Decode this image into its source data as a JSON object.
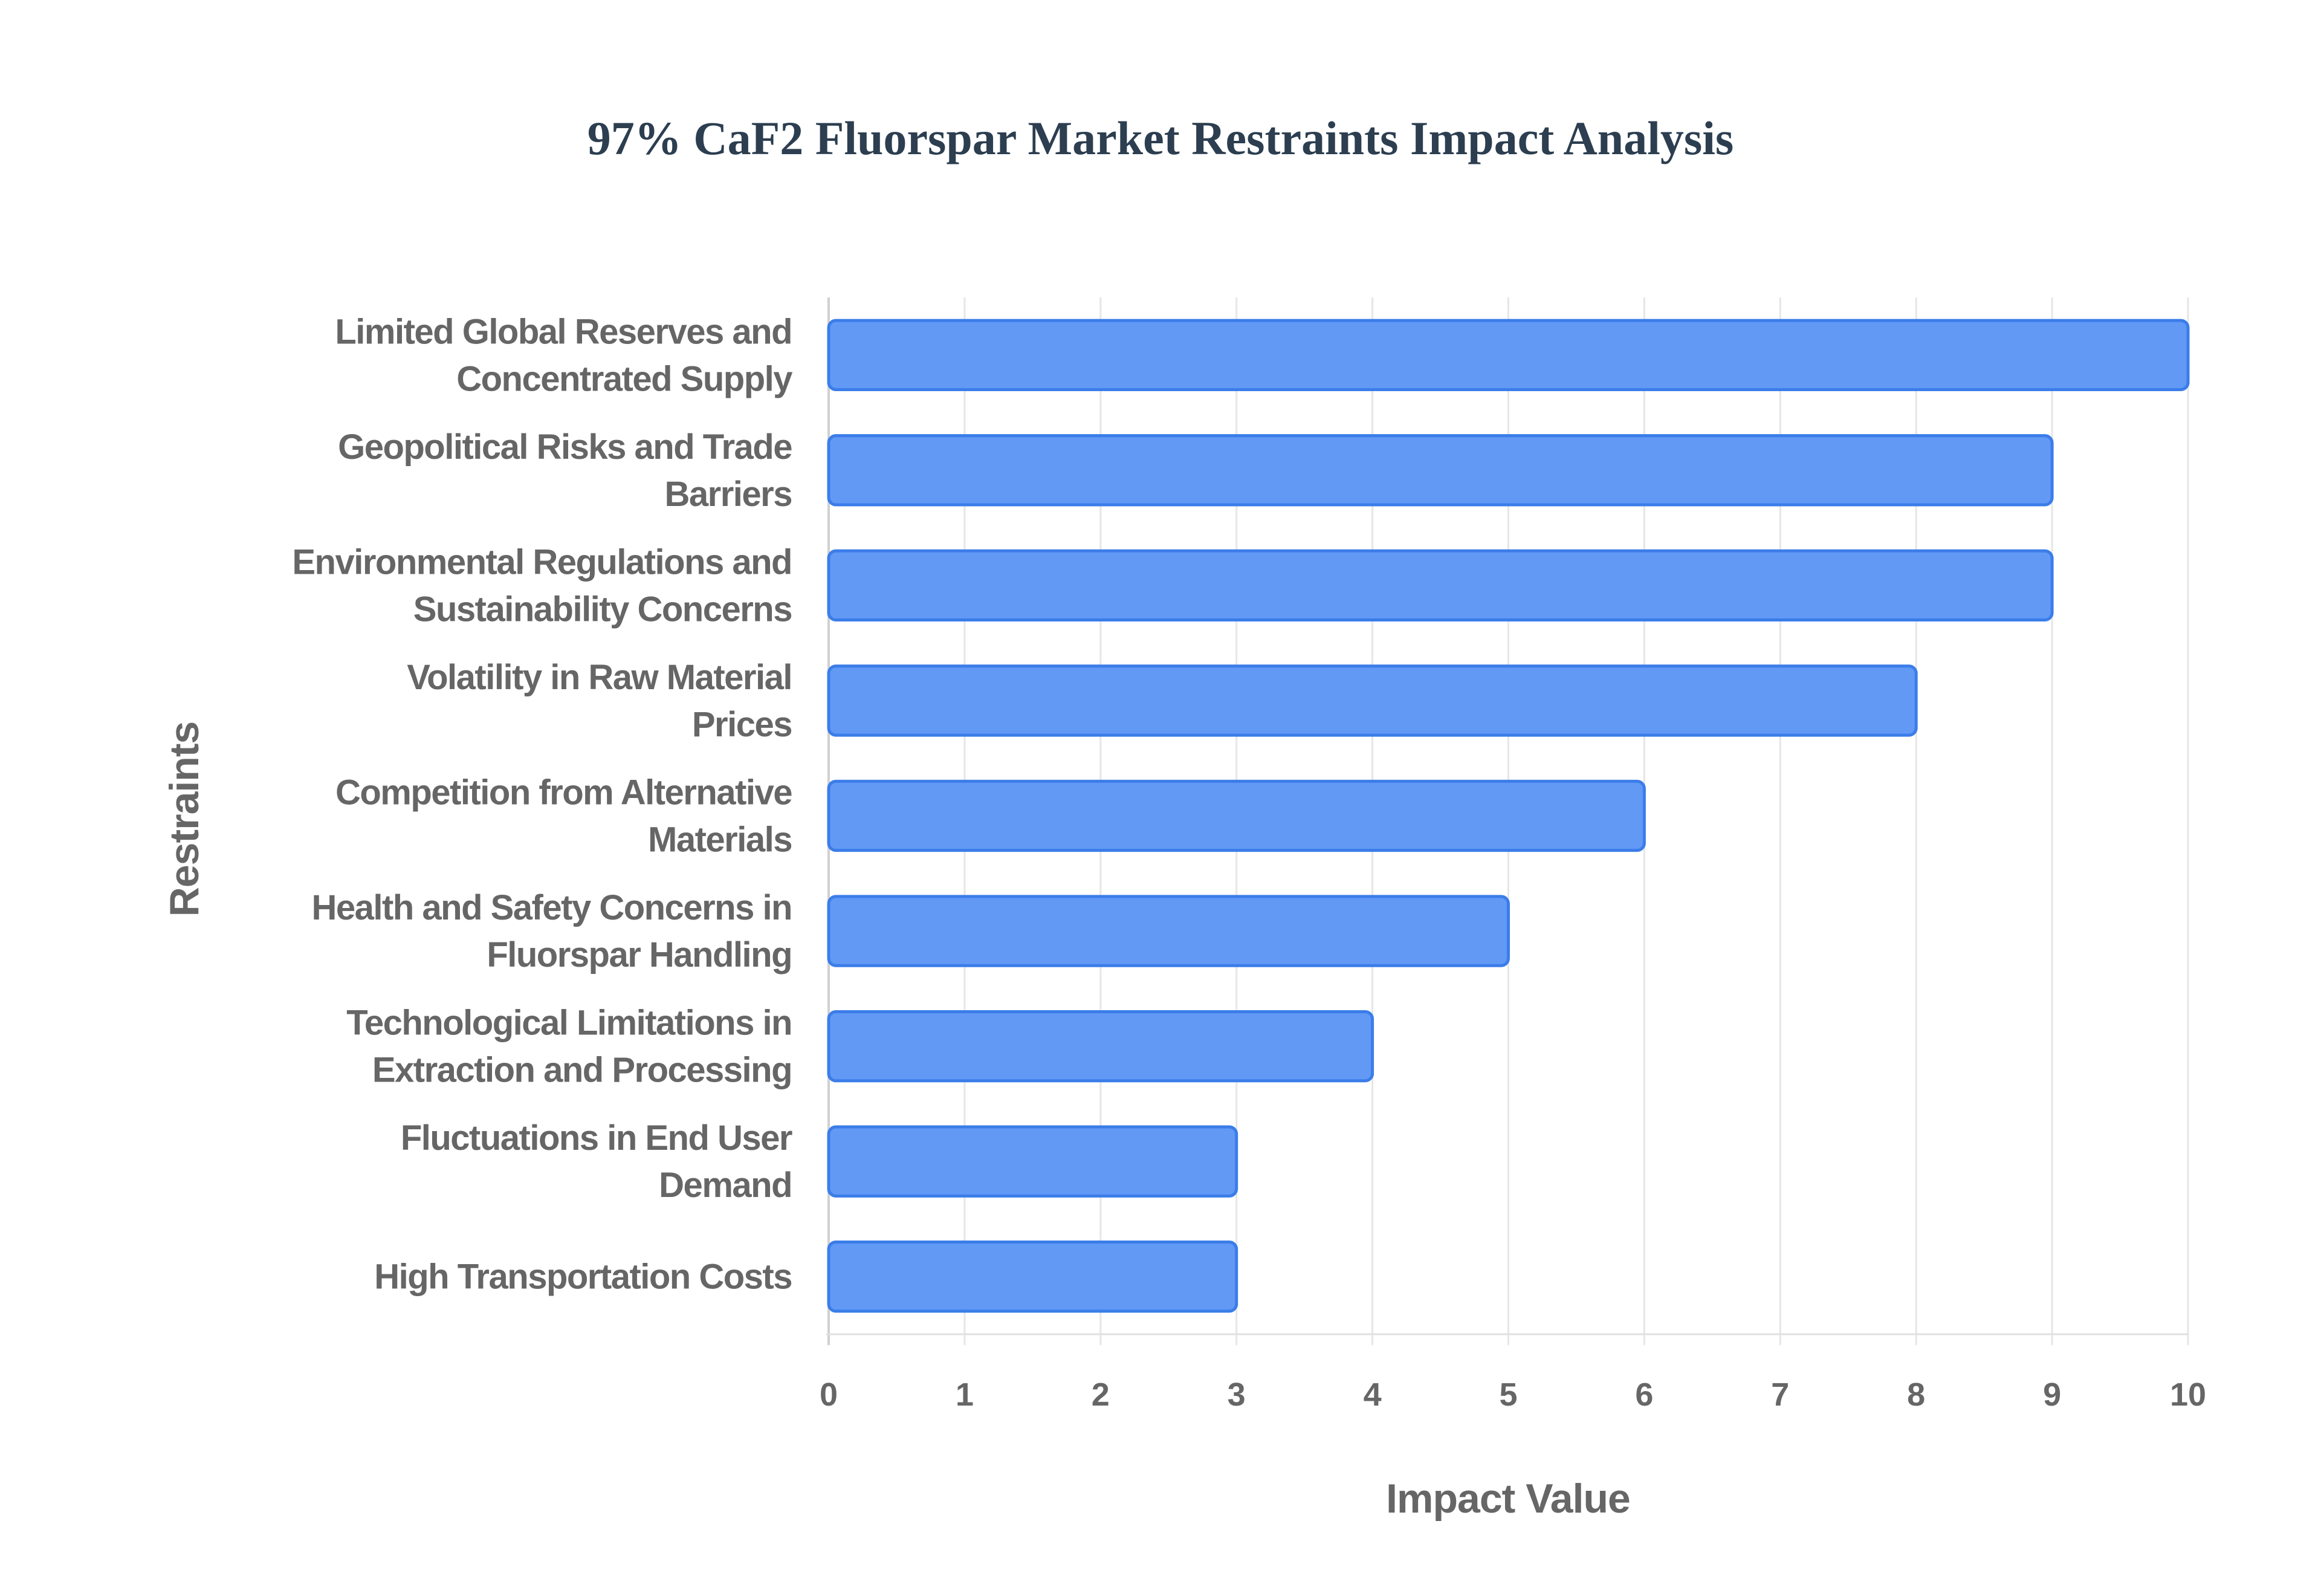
{
  "chart_data": {
    "type": "bar",
    "orientation": "horizontal",
    "title": "97% CaF2 Fluorspar Market Restraints Impact Analysis",
    "xlabel": "Impact Value",
    "ylabel": "Restraints",
    "xlim": [
      0,
      10
    ],
    "xticks": [
      "0",
      "1",
      "2",
      "3",
      "4",
      "5",
      "6",
      "7",
      "8",
      "9",
      "10"
    ],
    "grid": true,
    "categories": [
      [
        "Limited Global Reserves and",
        "Concentrated Supply"
      ],
      [
        "Geopolitical Risks and Trade",
        "Barriers"
      ],
      [
        "Environmental Regulations and",
        "Sustainability Concerns"
      ],
      [
        "Volatility in Raw Material",
        "Prices"
      ],
      [
        "Competition from Alternative",
        "Materials"
      ],
      [
        "Health and Safety Concerns in",
        "Fluorspar Handling"
      ],
      [
        "Technological Limitations in",
        "Extraction and Processing"
      ],
      [
        "Fluctuations in End User",
        "Demand"
      ],
      [
        "High Transportation Costs"
      ]
    ],
    "values": [
      10,
      9,
      9,
      8,
      6,
      5,
      4,
      3,
      3
    ],
    "colors": {
      "bar_fill": "#6199f5",
      "bar_stroke": "#3b7de9",
      "grid": "#e6e6e6",
      "text": "#666666",
      "title": "#2c3e50"
    }
  }
}
